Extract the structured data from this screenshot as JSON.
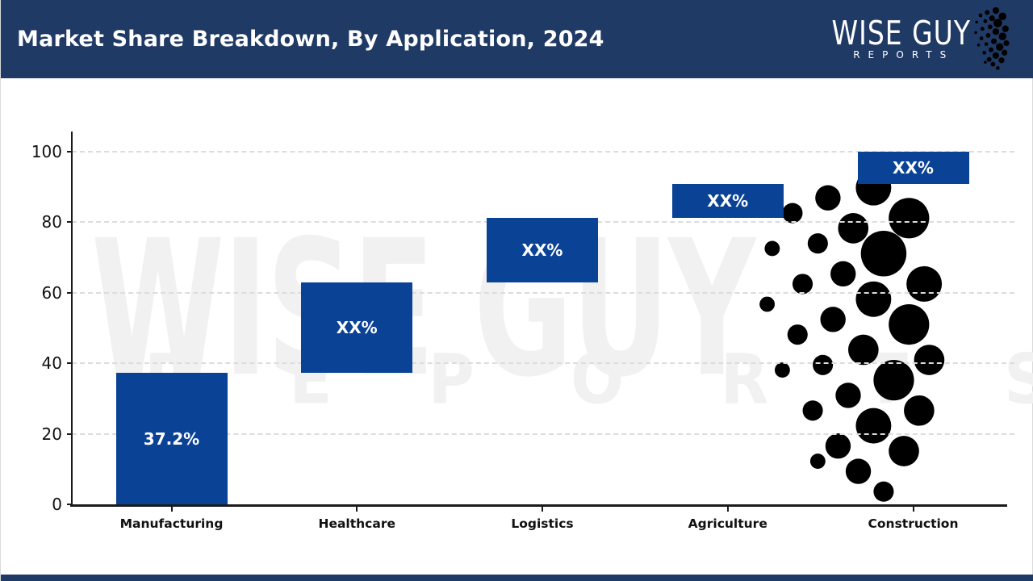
{
  "header": {
    "title": "Market Share Breakdown, By Application, 2024",
    "bg_color": "#203a66",
    "logo": {
      "line1": "WISE GUY",
      "line2": "REPORTS"
    }
  },
  "watermark": {
    "line1": "WISE GUY",
    "line2": "R E P O R T S"
  },
  "footer": {
    "bar_color": "#203a66"
  },
  "chart_data": {
    "type": "bar",
    "subtype": "waterfall-floating-bars",
    "title": "Market Share Breakdown, By Application, 2024",
    "categories": [
      "Manufacturing",
      "Healthcare",
      "Logistics",
      "Agriculture",
      "Construction"
    ],
    "segments": [
      {
        "category": "Manufacturing",
        "start": 0,
        "end": 37.2,
        "label": "37.2%"
      },
      {
        "category": "Healthcare",
        "start": 37.2,
        "end": 62.8,
        "label": "XX%"
      },
      {
        "category": "Logistics",
        "start": 62.8,
        "end": 81.2,
        "label": "XX%"
      },
      {
        "category": "Agriculture",
        "start": 81.2,
        "end": 90.8,
        "label": "XX%"
      },
      {
        "category": "Construction",
        "start": 90.8,
        "end": 100,
        "label": "XX%"
      }
    ],
    "yticks": [
      0,
      20,
      40,
      60,
      80,
      100
    ],
    "ylim": [
      0,
      105
    ],
    "xlabel": "",
    "ylabel": "",
    "grid": "horizontal-dashed",
    "legend": "none",
    "bar_color": "#0a4296",
    "bar_label_color": "#ffffff",
    "gridline_color": "#dcdcdc",
    "axis_color": "#1a1a1a"
  }
}
